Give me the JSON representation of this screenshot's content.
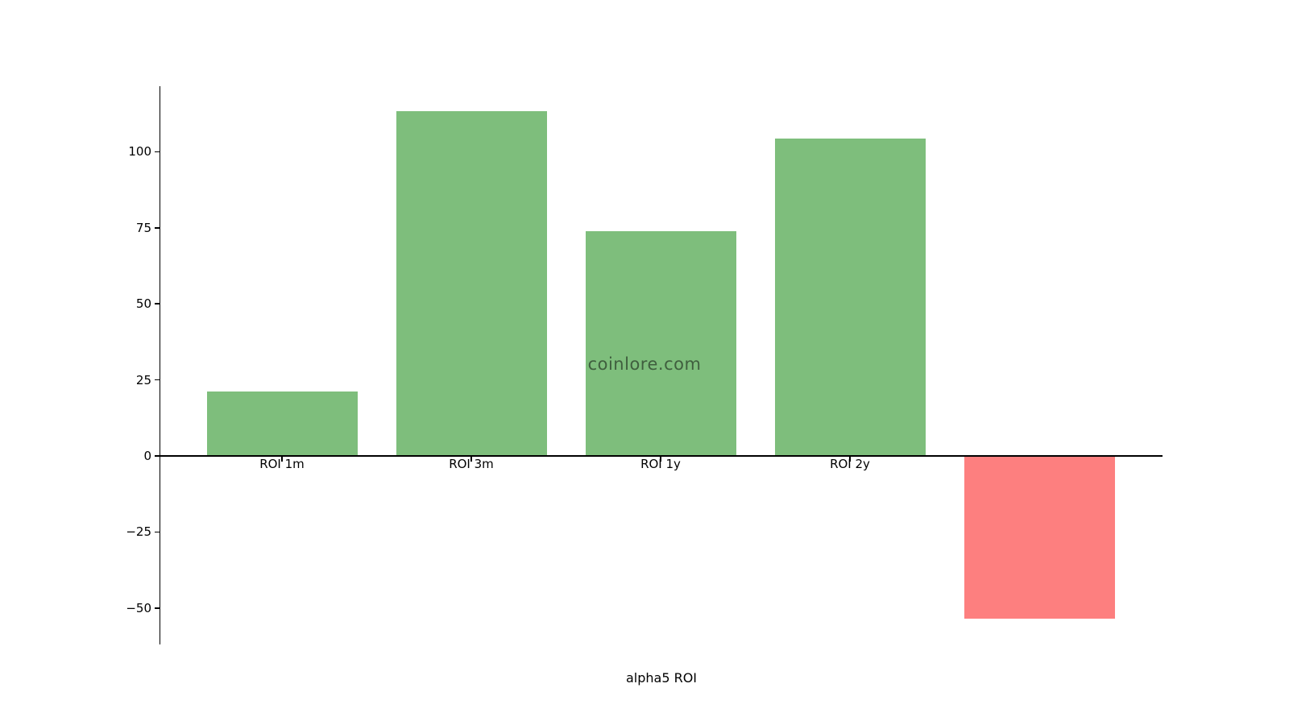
{
  "chart_data": {
    "type": "bar",
    "categories": [
      "ROI 1m",
      "ROI 3m",
      "ROI 1y",
      "ROI 2y",
      ""
    ],
    "values": [
      21.2,
      113.4,
      73.9,
      104.4,
      -53.5
    ],
    "series": [
      {
        "name": "alpha5 ROI",
        "values": [
          21.2,
          113.4,
          73.9,
          104.4,
          -53.5
        ]
      }
    ],
    "title": "",
    "xlabel": "alpha5 ROI",
    "ylabel": "",
    "yticks": [
      100,
      75,
      50,
      25,
      0,
      -25,
      -50
    ],
    "ytick_labels": [
      "100",
      "75",
      "50",
      "25",
      "0",
      "−25",
      "−50"
    ],
    "ylim": [
      -62,
      121.5
    ],
    "grid": false,
    "legend": null,
    "positive_color": "#7ebe7c",
    "negative_color": "#fd7f7f",
    "axis_color": "#000000",
    "tick_text_color": "#000000",
    "bar_colors": [
      "#7ebe7c",
      "#7ebe7c",
      "#7ebe7c",
      "#7ebe7c",
      "#fd7f7f"
    ]
  },
  "watermark": {
    "text": "coinlore.com"
  },
  "background_color": "#ffffff"
}
